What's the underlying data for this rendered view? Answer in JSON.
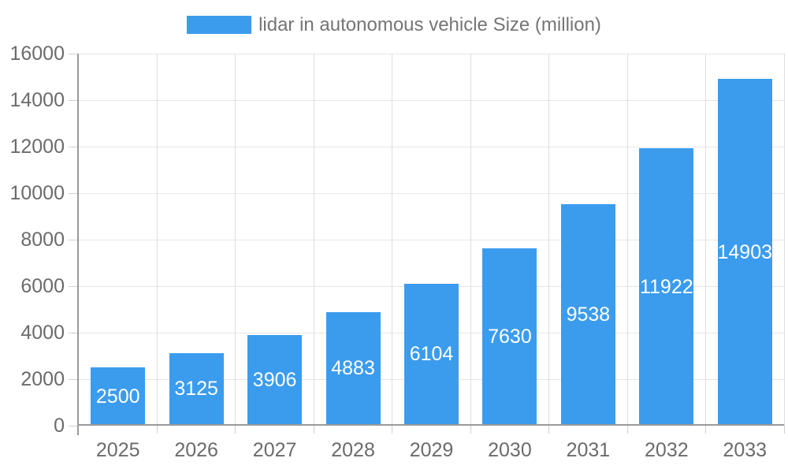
{
  "legend": {
    "label": "lidar in autonomous vehicle Size (million)",
    "swatch_color": "#3b9cee",
    "position": "top"
  },
  "chart_data": {
    "type": "bar",
    "title": "lidar in autonomous vehicle Size (million)",
    "categories": [
      "2025",
      "2026",
      "2027",
      "2028",
      "2029",
      "2030",
      "2031",
      "2032",
      "2033"
    ],
    "values": [
      2500,
      3125,
      3906,
      4883,
      6104,
      7630,
      9538,
      11922,
      14903
    ],
    "xlabel": "",
    "ylabel": "",
    "ylim": [
      0,
      16000
    ],
    "y_tick_step": 2000,
    "y_tick_labels": [
      "0",
      "2000",
      "4000",
      "6000",
      "8000",
      "10000",
      "12000",
      "14000",
      "16000"
    ],
    "grid": true,
    "legend_position": "top",
    "bar_color": "#3b9cee",
    "bar_label_color": "#ffffff"
  },
  "colors": {
    "background": "#ffffff",
    "axis_line": "#9a9a9a",
    "h_gridline": "#e6e6e6",
    "v_gridline": "#dedede",
    "tick_mark": "#cfcfcf",
    "tick_label": "#6b6b6b",
    "legend_text": "#757575"
  }
}
